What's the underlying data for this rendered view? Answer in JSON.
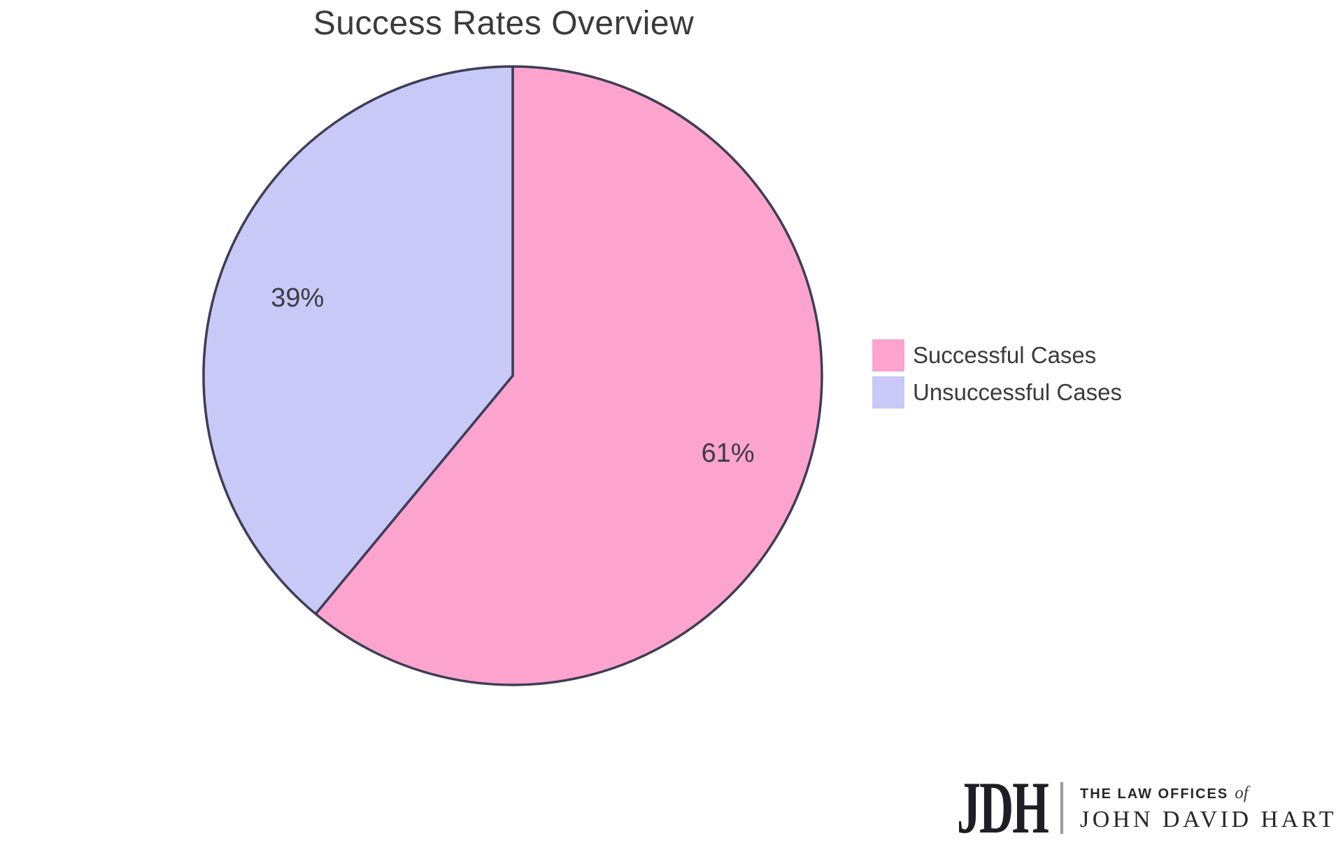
{
  "chart": {
    "title": "Success Rates Overview"
  },
  "chart_data": {
    "type": "pie",
    "title": "Success Rates Overview",
    "slices": [
      {
        "label": "Successful Cases",
        "value": 61,
        "display": "61%",
        "color": "#FCA3CE"
      },
      {
        "label": "Unsuccessful Cases",
        "value": 39,
        "display": "39%",
        "color": "#C9C9F7"
      }
    ],
    "start_angle_deg": -90,
    "direction": "clockwise",
    "outline_color": "#3D3D56",
    "outline_width": 3.5,
    "label_color": "#3B3B45",
    "label_radius_ratio": 0.74,
    "radius_px": 442,
    "legend_position": "right",
    "grid": false
  },
  "legend": {
    "items": [
      {
        "label": "Successful Cases",
        "color": "#FCA3CE"
      },
      {
        "label": "Unsuccessful Cases",
        "color": "#C9C9F7"
      }
    ]
  },
  "branding": {
    "monogram": "JDH",
    "tagline_prefix": "THE LAW OFFICES",
    "tagline_of": "of",
    "firm_name": "JOHN DAVID HART"
  }
}
